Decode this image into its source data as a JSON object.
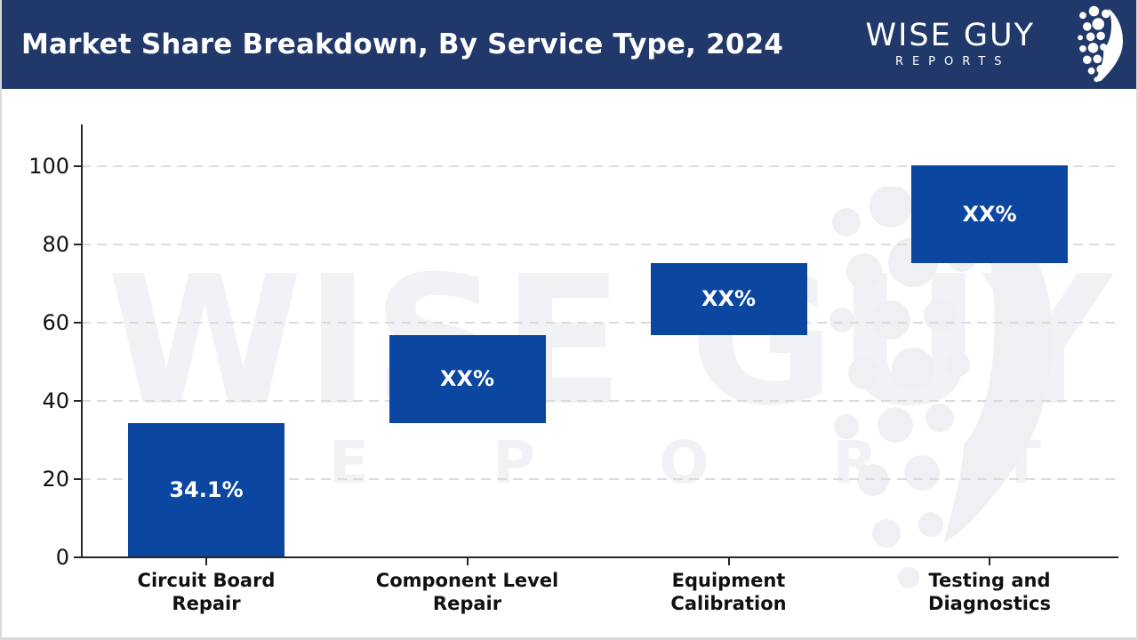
{
  "header": {
    "title": "Market Share Breakdown, By Service Type, 2024",
    "bg_color": "#21396a",
    "logo": {
      "line1": "WISE GUY",
      "line2": "REPORTS"
    }
  },
  "watermark": {
    "line1": "WISE GUY",
    "line2": "R E P O R T S"
  },
  "chart_data": {
    "type": "bar",
    "subtype": "waterfall",
    "title": "Market Share Breakdown, By Service Type, 2024",
    "categories": [
      "Circuit Board Repair",
      "Component Level Repair",
      "Equipment Calibration",
      "Testing and Diagnostics"
    ],
    "category_lines": [
      [
        "Circuit Board",
        "Repair"
      ],
      [
        "Component Level",
        "Repair"
      ],
      [
        "Equipment",
        "Calibration"
      ],
      [
        "Testing and",
        "Diagnostics"
      ]
    ],
    "series": [
      {
        "name": "Market Share %",
        "segments": [
          {
            "category": "Circuit Board Repair",
            "start": 0,
            "end": 34.1,
            "label": "34.1%"
          },
          {
            "category": "Component Level Repair",
            "start": 34.1,
            "end": 56.7,
            "label": "XX%"
          },
          {
            "category": "Equipment Calibration",
            "start": 56.7,
            "end": 74.9,
            "label": "XX%"
          },
          {
            "category": "Testing and Diagnostics",
            "start": 74.9,
            "end": 100,
            "label": "XX%"
          }
        ]
      }
    ],
    "ylim": [
      0,
      100
    ],
    "yticks": [
      0,
      20,
      40,
      60,
      80,
      100
    ],
    "grid": "horizontal-dashed",
    "legend": "none",
    "bar_color": "#0b47a0",
    "bar_label_color": "#ffffff",
    "axis_color": "#262626",
    "gridline_color": "#dcdcdc"
  }
}
